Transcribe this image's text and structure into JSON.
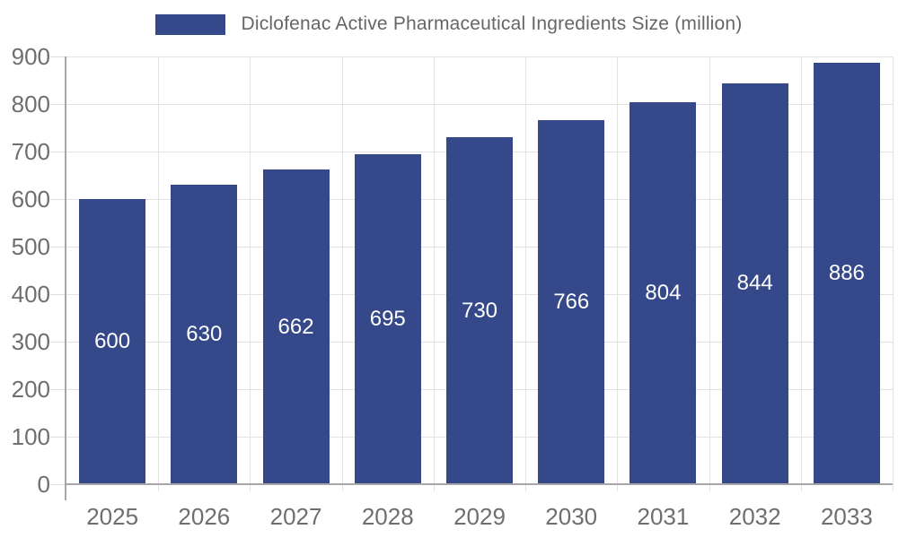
{
  "legend": {
    "label": "Diclofenac Active Pharmaceutical Ingredients Size (million)"
  },
  "chart_data": {
    "type": "bar",
    "title": "Diclofenac Active Pharmaceutical Ingredients Size (million)",
    "categories": [
      "2025",
      "2026",
      "2027",
      "2028",
      "2029",
      "2030",
      "2031",
      "2032",
      "2033"
    ],
    "values": [
      600,
      630,
      662,
      695,
      730,
      766,
      804,
      844,
      886
    ],
    "xlabel": "",
    "ylabel": "",
    "ylim": [
      0,
      900
    ],
    "ytick_step": 100,
    "yticks": [
      0,
      100,
      200,
      300,
      400,
      500,
      600,
      700,
      800,
      900
    ],
    "grid": true,
    "legend_position": "top",
    "bar_value_labels_visible": true
  },
  "colors": {
    "bar": "#35498a",
    "bar_label": "#ffffff",
    "grid_line": "#e3e3e3",
    "axis_line": "#a7a7a7",
    "axis_text": "#6e6e6e",
    "title_text": "#666666",
    "background": "#ffffff"
  }
}
